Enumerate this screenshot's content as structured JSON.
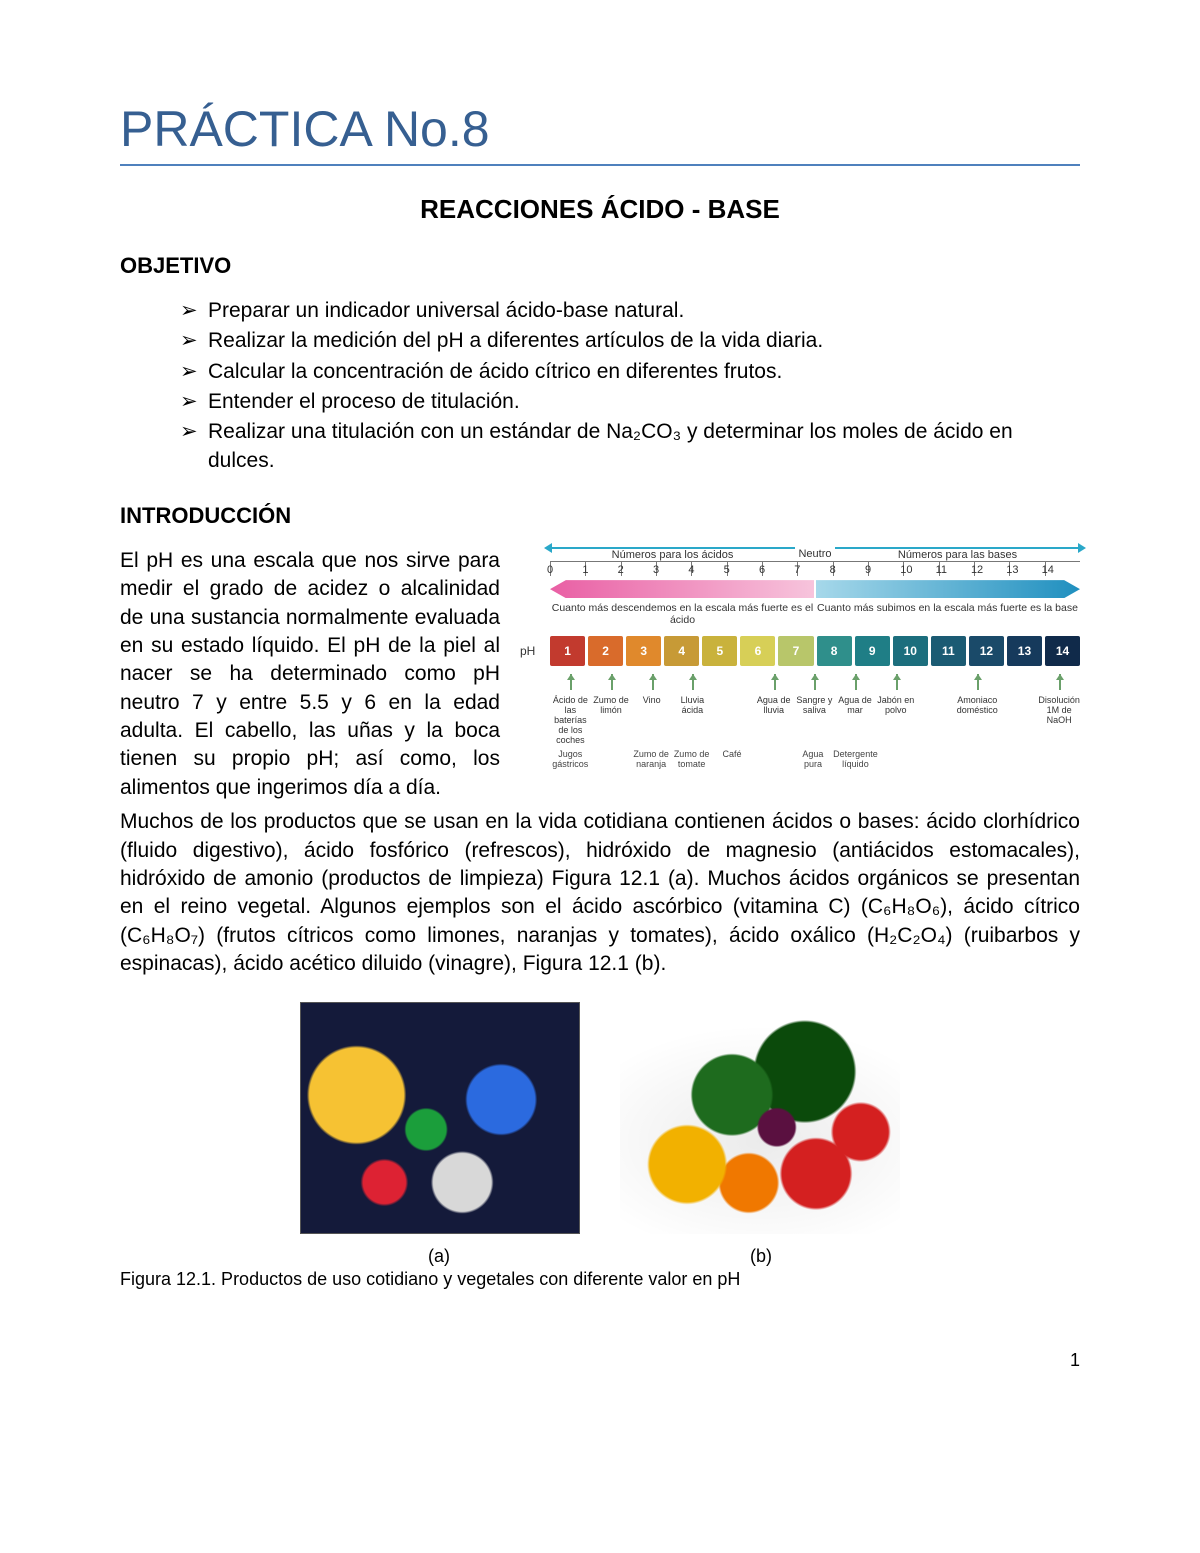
{
  "title": "PRÁCTICA No.8",
  "subtitle": "REACCIONES ÁCIDO - BASE",
  "sections": {
    "objetivo": "OBJETIVO",
    "introduccion": "INTRODUCCIÓN"
  },
  "objectives": [
    "Preparar un indicador universal ácido-base natural.",
    "Realizar la medición del pH a diferentes artículos de la vida diaria.",
    "Calcular la concentración de ácido cítrico en diferentes frutos.",
    "Entender el proceso de titulación.",
    "Realizar una titulación con un estándar de Na₂CO₃  y determinar los moles de ácido en dulces."
  ],
  "intro_side_text": "El pH es una escala que nos sirve para medir el grado de acidez o alcalinidad de una sustancia normalmente evaluada en su estado líquido.  El pH de la piel al nacer se ha determinado como pH neutro 7 y entre 5.5 y 6 en la edad adulta. El cabello, las uñas y la boca tienen su propio pH; así como, los alimentos que ingerimos día a día.",
  "intro_full_text": "Muchos de los productos que se usan en la vida cotidiana contienen ácidos o bases: ácido clorhídrico (fluido digestivo), ácido fosfórico (refrescos), hidróxido de magnesio (antiácidos estomacales), hidróxido de amonio (productos de limpieza) Figura 12.1 (a).  Muchos ácidos orgánicos se presentan en el reino vegetal. Algunos ejemplos son el ácido ascórbico (vitamina C) (C₆H₈O₆), ácido cítrico (C₆H₈O₇) (frutos cítricos como limones, naranjas y tomates), ácido oxálico (H₂C₂O₄) (ruibarbos y espinacas), ácido acético diluido (vinagre),  Figura 12.1 (b).",
  "ph_scale": {
    "top_acid_label": "Números para los ácidos",
    "top_neutral_label": "Neutro",
    "top_base_label": "Números para las bases",
    "ticks": [
      "0",
      "1",
      "2",
      "3",
      "4",
      "5",
      "6",
      "7",
      "8",
      "9",
      "10",
      "11",
      "12",
      "13",
      "14"
    ],
    "mid_left": "Cuanto más descendemos en la escala más fuerte es el ácido",
    "mid_right": "Cuanto más subimos en la escala más fuerte es la base",
    "ph_axis_label": "pH",
    "boxes": [
      {
        "n": "1",
        "c": "#c23a2e"
      },
      {
        "n": "2",
        "c": "#d96b2b"
      },
      {
        "n": "3",
        "c": "#e0892c"
      },
      {
        "n": "4",
        "c": "#c79a36"
      },
      {
        "n": "5",
        "c": "#c9b23c"
      },
      {
        "n": "6",
        "c": "#d7cf57"
      },
      {
        "n": "7",
        "c": "#b8c66a"
      },
      {
        "n": "8",
        "c": "#2f8f8b"
      },
      {
        "n": "9",
        "c": "#1f7e86"
      },
      {
        "n": "10",
        "c": "#1c6e7d"
      },
      {
        "n": "11",
        "c": "#1b5b73"
      },
      {
        "n": "12",
        "c": "#1a4a69"
      },
      {
        "n": "13",
        "c": "#163a5c"
      },
      {
        "n": "14",
        "c": "#102a4a"
      }
    ],
    "examples_top": [
      "Ácido de las baterías de los coches",
      "Zumo de limón",
      "Vino",
      "Lluvia ácida",
      "",
      "Agua de lluvia",
      "Sangre y saliva",
      "Agua de mar",
      "Jabón en polvo",
      "",
      "Amoniaco doméstico",
      "",
      "Disolución 1M de NaOH"
    ],
    "examples_bottom": [
      "Jugos gástricos",
      "",
      "Zumo de naranja",
      "Zumo de tomate",
      "Café",
      "",
      "Agua pura",
      "Detergente líquido",
      "",
      "",
      "",
      "",
      ""
    ]
  },
  "figure": {
    "label_a": "(a)",
    "label_b": "(b)",
    "caption": "Figura 12.1. Productos de uso cotidiano y vegetales con diferente valor en pH"
  },
  "page_number": "1"
}
